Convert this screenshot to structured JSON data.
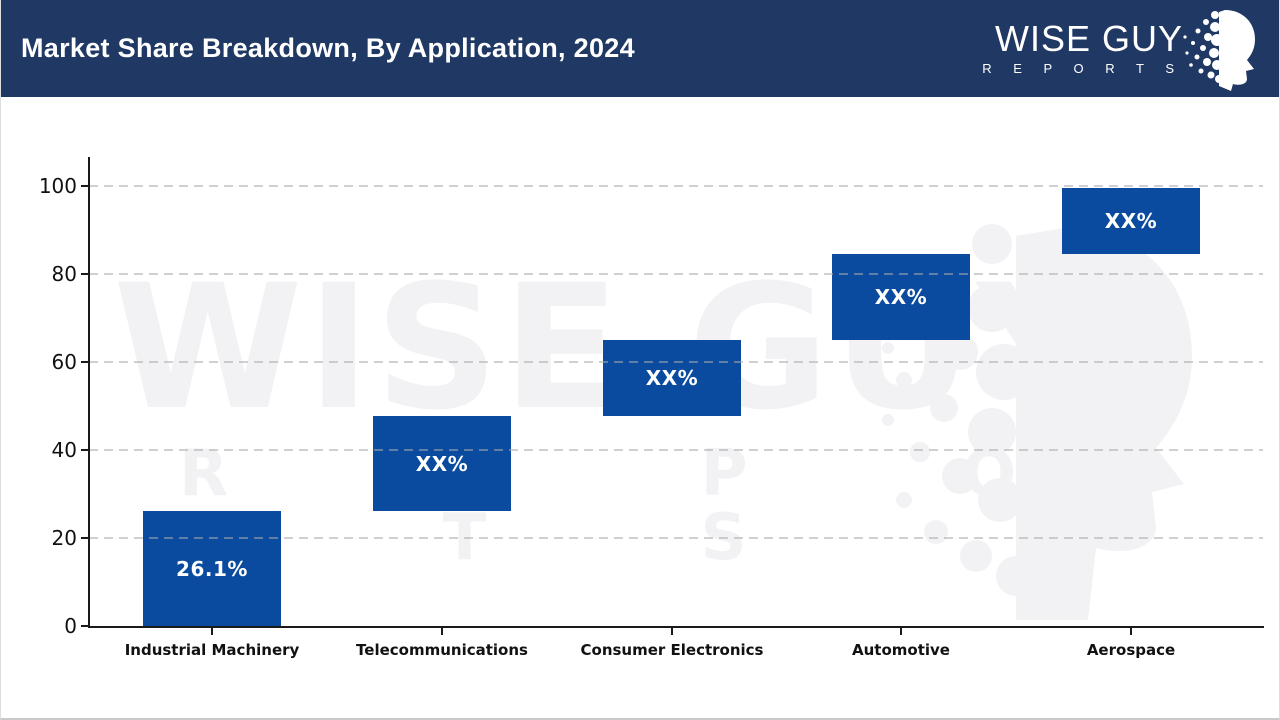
{
  "header": {
    "title": "Market Share Breakdown, By Application, 2024",
    "background": "#1F3864",
    "logo": {
      "line1": "WISE GUY",
      "line2": "R E P O R T S",
      "icon": "dotted-head-profile"
    }
  },
  "watermark": {
    "line1": "WISE GUY",
    "line2": "R E P O R T S"
  },
  "chart_data": {
    "type": "bar",
    "subtype": "floating-waterfall",
    "title": "Market Share Breakdown, By Application, 2024",
    "categories": [
      "Industrial Machinery",
      "Telecommunications",
      "Consumer Electronics",
      "Automotive",
      "Aerospace"
    ],
    "segments": [
      {
        "category": "Industrial Machinery",
        "label": "26.1%",
        "start": 0,
        "end": 26.1
      },
      {
        "category": "Telecommunications",
        "label": "XX%",
        "start": 26.1,
        "end": 47.7
      },
      {
        "category": "Consumer Electronics",
        "label": "XX%",
        "start": 47.7,
        "end": 65.0
      },
      {
        "category": "Automotive",
        "label": "XX%",
        "start": 65.0,
        "end": 84.6
      },
      {
        "category": "Aerospace",
        "label": "XX%",
        "start": 84.6,
        "end": 99.5
      }
    ],
    "ylim": [
      0,
      100
    ],
    "yticks": [
      0,
      20,
      40,
      60,
      80,
      100
    ],
    "grid": "horizontal-dashed",
    "legend": "none",
    "bar_color": "#0A4B9F",
    "bar_label_color": "#FFFFFF",
    "axis_color": "#1a1a1a"
  }
}
